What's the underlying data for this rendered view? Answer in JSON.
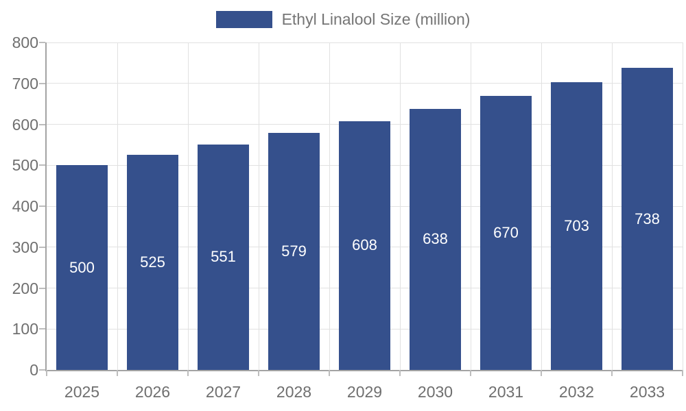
{
  "legend": {
    "label": "Ethyl Linalool Size (million)"
  },
  "chart_data": {
    "type": "bar",
    "title": "",
    "legend_label": "Ethyl Linalool Size (million)",
    "categories": [
      "2025",
      "2026",
      "2027",
      "2028",
      "2029",
      "2030",
      "2031",
      "2032",
      "2033"
    ],
    "values": [
      500,
      525,
      551,
      579,
      608,
      638,
      670,
      703,
      738
    ],
    "xlabel": "",
    "ylabel": "",
    "ylim": [
      0,
      800
    ],
    "ytick_step": 100,
    "grid": true,
    "legend_position": "top-center",
    "colors": {
      "bar": "#35508C",
      "bar_label": "#FFFFFF",
      "tick_label": "#6F6F6F",
      "legend_text": "#757575",
      "grid": "#E1E1E1",
      "axis": "#A3A3A3",
      "tick": "#BDBDBD",
      "background": "#FFFFFF"
    }
  }
}
